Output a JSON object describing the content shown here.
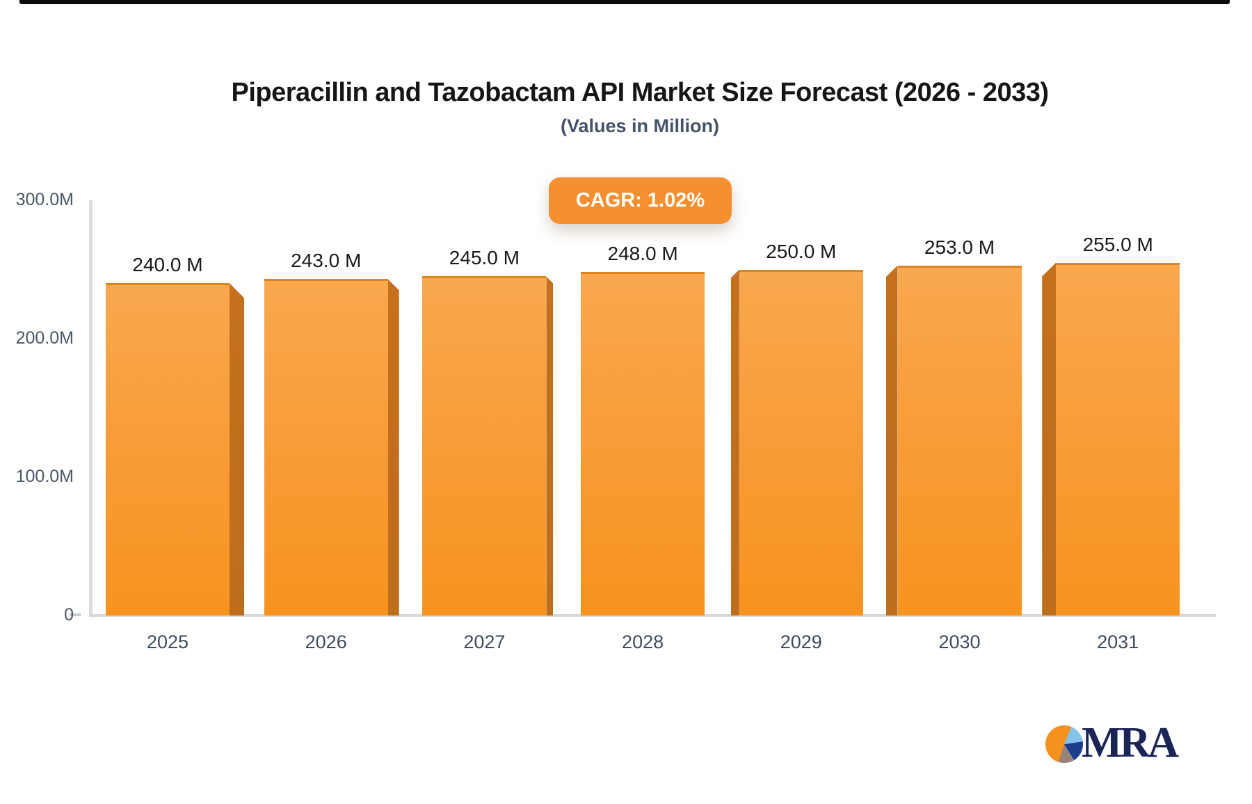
{
  "header": {
    "title": "Piperacillin and Tazobactam API Market Size Forecast (2026 - 2033)",
    "subtitle": "(Values in Million)"
  },
  "badge": {
    "label": "CAGR: 1.02%"
  },
  "logo": {
    "text": "MRA",
    "icon": "pie-chart-icon"
  },
  "chart_data": {
    "type": "bar",
    "title": "Piperacillin and Tazobactam API Market Size Forecast (2026 - 2033)",
    "subtitle": "(Values in Million)",
    "categories": [
      "2025",
      "2026",
      "2027",
      "2028",
      "2029",
      "2030",
      "2031"
    ],
    "values": [
      240,
      243,
      245,
      248,
      250,
      253,
      255
    ],
    "bar_labels": [
      "240.0 M",
      "243.0 M",
      "245.0 M",
      "248.0 M",
      "250.0 M",
      "253.0 M",
      "255.0 M"
    ],
    "annotation": "CAGR: 1.02%",
    "ylim": [
      0,
      300
    ],
    "yticks": [
      {
        "value": 300,
        "label": "300.0M"
      },
      {
        "value": 200,
        "label": "200.0M"
      },
      {
        "value": 100,
        "label": "100.0M"
      },
      {
        "value": 0,
        "label": "0"
      }
    ],
    "grid": false,
    "legend": "none",
    "colors": {
      "bar_top": "#F9A84F",
      "bar_bottom": "#F7941F",
      "bar_side": "#BE6D1D",
      "bar_edge": "#DC841E",
      "axis": "#DBDBDB",
      "tick_text": "#4B5766",
      "category_text": "#3E4B5E",
      "value_text": "#191919",
      "badge_bg": "#F4902F",
      "badge_text": "#FFFFFF"
    }
  }
}
